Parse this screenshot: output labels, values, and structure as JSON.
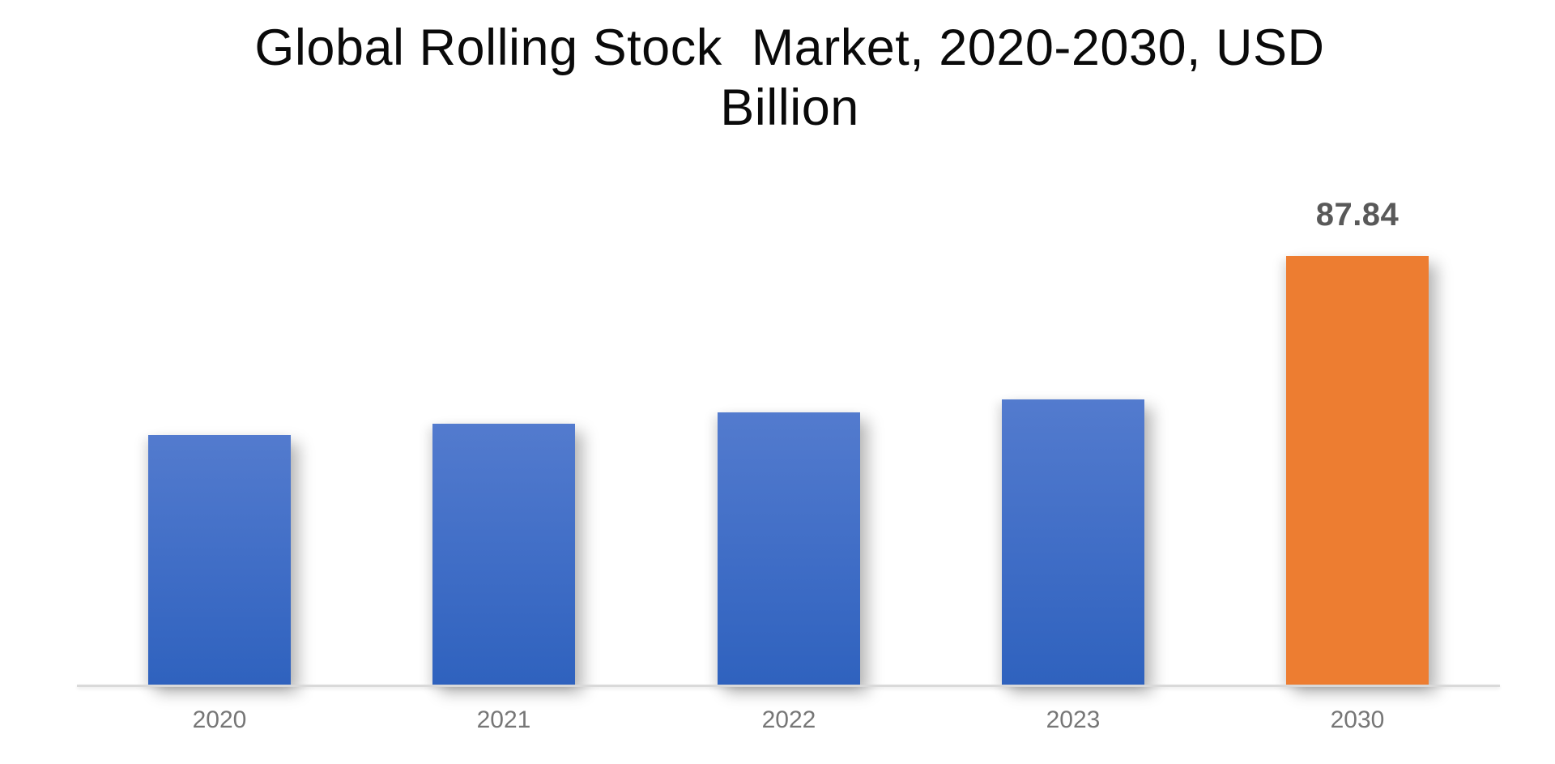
{
  "title_display": "Global Rolling Stock  Market, 2020-2030, USD\nBillion",
  "chart_data": {
    "type": "bar",
    "title": "Global Rolling Stock  Market, 2020-2030, USD Billion",
    "unit": "USD Billion",
    "categories": [
      "2020",
      "2021",
      "2022",
      "2023",
      "2030"
    ],
    "values": [
      51.2,
      53.5,
      55.8,
      58.5,
      87.84
    ],
    "data_labels": [
      null,
      null,
      null,
      null,
      "87.84"
    ],
    "highlight_index": 4,
    "xlabel": "",
    "ylabel": "",
    "ylim": [
      0,
      95
    ],
    "grid": false,
    "legend": false,
    "y_axis_visible": false
  },
  "colors": {
    "bar_blue_top": "#537bce",
    "bar_blue_bottom": "#2f62be",
    "bar_orange": "#ed7d31",
    "axis_line": "#d9d9d9",
    "x_label_text": "#767676",
    "data_label_text": "#595959",
    "title_text": "#0a0a0a",
    "background": "#ffffff"
  }
}
